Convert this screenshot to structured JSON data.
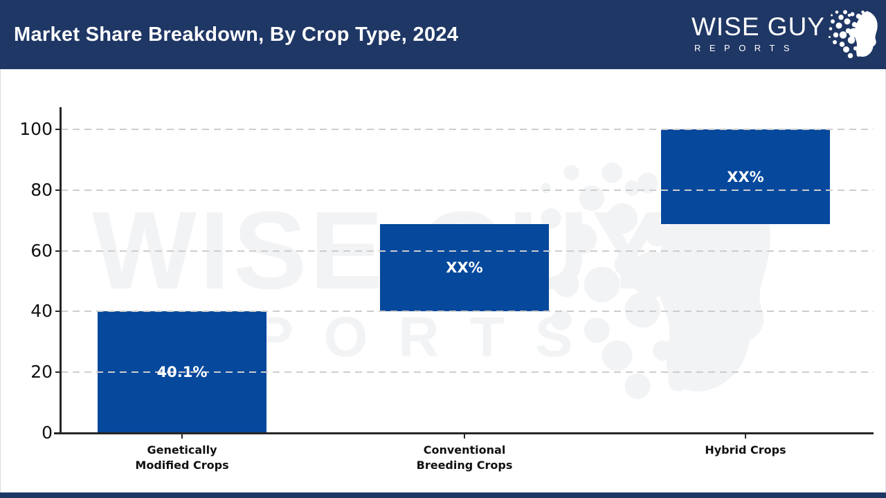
{
  "header": {
    "title": "Market Share Breakdown, By Crop Type, 2024",
    "logo": {
      "line1": "WISE GUY",
      "line2": "REPORTS"
    }
  },
  "watermark": {
    "line1": "WISE GUY",
    "line2": "REPORTS"
  },
  "colors": {
    "header_bg": "#1f3765",
    "footer_bg": "#1f3765",
    "bar_fill": "#05489c",
    "bar_label_text": "#ffffff",
    "grid_line": "#cdcdcd",
    "axis_line": "#262626",
    "tick_text": "#111111",
    "watermark_gray": "#f2f3f5"
  },
  "chart_data": {
    "type": "bar",
    "subtype": "floating-segment-percentage",
    "title": "Market Share Breakdown, By Crop Type, 2024",
    "categories": [
      "Genetically Modified Crops",
      "Conventional Breeding Crops",
      "Hybrid Crops"
    ],
    "category_label_lines": [
      [
        "Genetically",
        "Modified Crops"
      ],
      [
        "Conventional",
        "Breeding Crops"
      ],
      [
        "Hybrid Crops"
      ]
    ],
    "segments": [
      {
        "category": "Genetically Modified Crops",
        "start": 0,
        "end": 40.1,
        "label": "40.1%"
      },
      {
        "category": "Conventional Breeding Crops",
        "start": 40.1,
        "end": 68.9,
        "label": "XX%"
      },
      {
        "category": "Hybrid Crops",
        "start": 68.9,
        "end": 100,
        "label": "XX%"
      }
    ],
    "ylim": [
      0,
      100
    ],
    "yticks": [
      0,
      20,
      40,
      60,
      80,
      100
    ],
    "grid": "dashed-horizontal",
    "legend": false,
    "xlabel": "",
    "ylabel": ""
  }
}
